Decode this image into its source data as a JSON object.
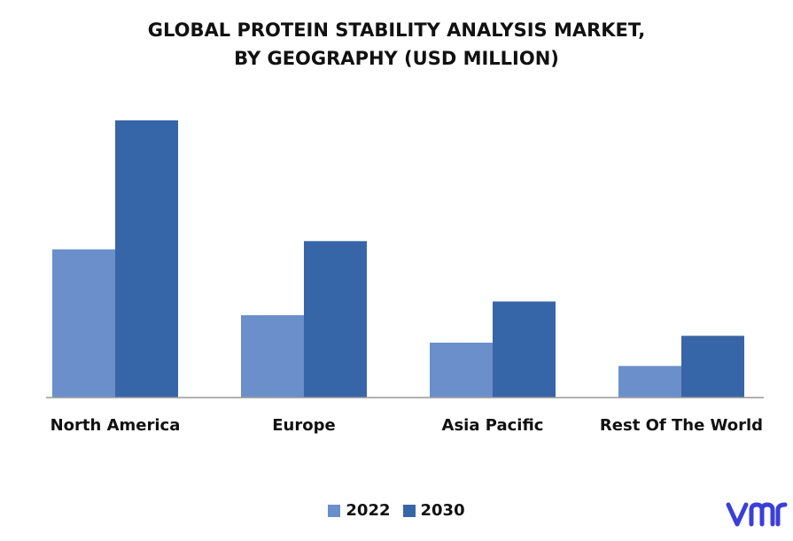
{
  "title_line1": "GLOBAL PROTEIN STABILITY ANALYSIS MARKET,",
  "title_line2": "BY GEOGRAPHY (USD MILLION)",
  "colors": {
    "s2022": "#6a8fcb",
    "s2030": "#3766a8",
    "axis": "#999999",
    "logo": "#3b3fd8"
  },
  "logo_icon": "vmr-logo",
  "chart_data": {
    "type": "bar",
    "title": "GLOBAL PROTEIN STABILITY ANALYSIS MARKET, BY GEOGRAPHY (USD MILLION)",
    "categories": [
      "North America",
      "Europe",
      "Asia Pacific",
      "Rest Of The World"
    ],
    "series": [
      {
        "name": "2022",
        "values": [
          54,
          30,
          20,
          11.5
        ]
      },
      {
        "name": "2030",
        "values": [
          101,
          57,
          35,
          22.5
        ]
      }
    ],
    "ylim": [
      0,
      110
    ],
    "grid": false,
    "legend": "bottom-center",
    "xlabel": "",
    "ylabel": ""
  }
}
